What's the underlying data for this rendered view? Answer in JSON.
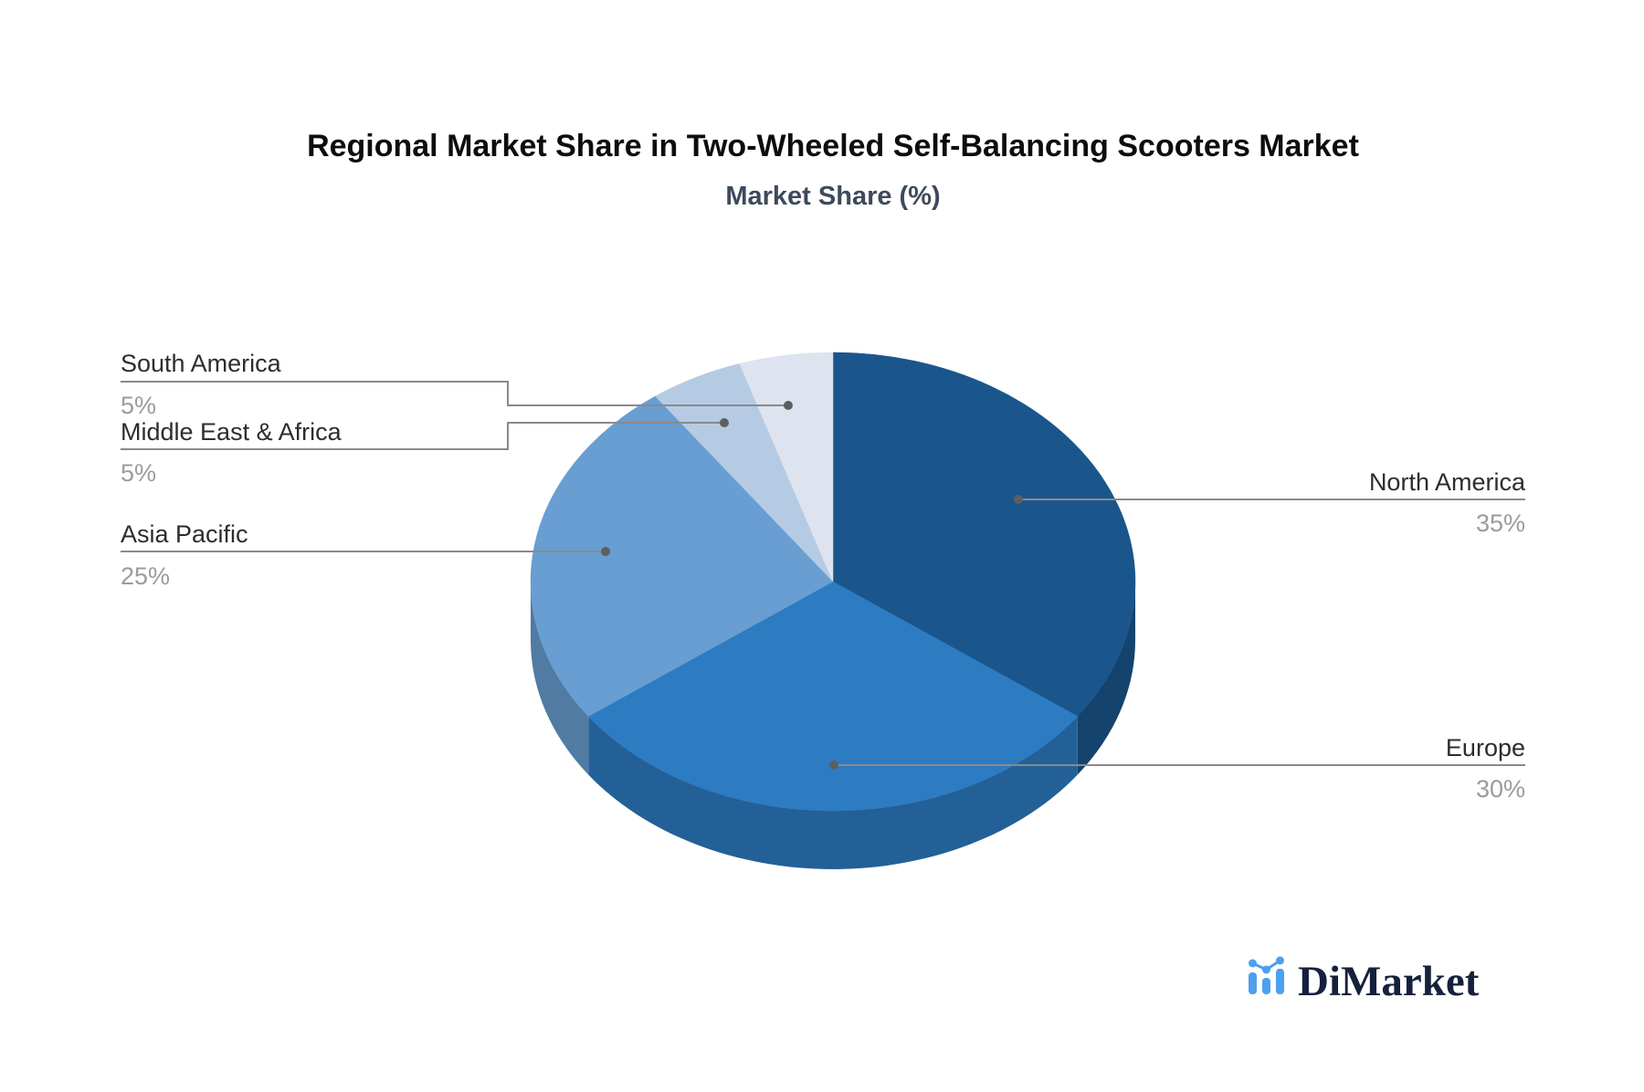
{
  "page": {
    "background": "#ffffff"
  },
  "chart_data": {
    "type": "pie",
    "style": "3d",
    "title": "Regional Market Share in Two-Wheeled Self-Balancing Scooters Market",
    "subtitle": "Market Share (%)",
    "unit": "%",
    "direction": "clockwise",
    "start_angle_deg": 0,
    "legend_position": "callout-labels",
    "segments": [
      {
        "label": "North America",
        "value": 35,
        "display_value": "35%",
        "color": "#1a568c"
      },
      {
        "label": "Europe",
        "value": 30,
        "display_value": "30%",
        "color": "#2d7bc1"
      },
      {
        "label": "Asia Pacific",
        "value": 25,
        "display_value": "25%",
        "color": "#689ed1"
      },
      {
        "label": "Middle East & Africa",
        "value": 5,
        "display_value": "5%",
        "color": "#b5cbe4"
      },
      {
        "label": "South America",
        "value": 5,
        "display_value": "5%",
        "color": "#dde4ef"
      }
    ],
    "label_text_color": "#2d2d2d",
    "value_text_color": "#9b9b9b",
    "connector_color": "#8a8a8a"
  },
  "branding": {
    "logo_text": "DiMarket",
    "logo_text_color": "#15213c",
    "logo_icon": "bar-line-chart-icon",
    "logo_icon_color": "#4da0f0"
  }
}
